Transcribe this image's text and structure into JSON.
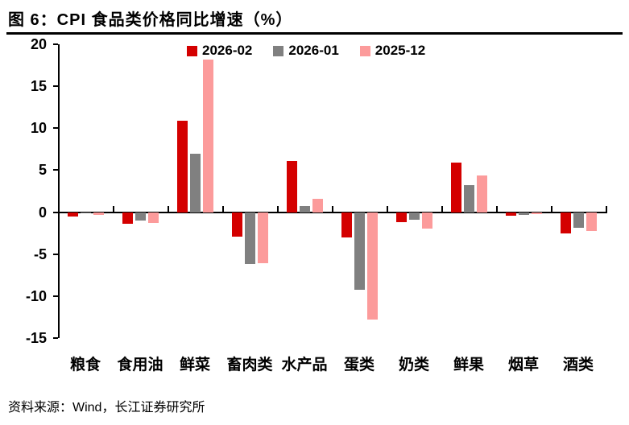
{
  "title": "图 6：CPI 食品类价格同比增速（%）",
  "source_note": "资料来源：Wind，长江证券研究所",
  "colors": {
    "red": "#d40000",
    "gray": "#808080",
    "pink": "#fc9b9b",
    "axis": "#000000"
  },
  "chart_data": {
    "type": "bar",
    "title": "图 6：CPI 食品类价格同比增速（%）",
    "xlabel": "",
    "ylabel": "",
    "ylim": [
      -15,
      20
    ],
    "yticks": [
      20,
      15,
      10,
      5,
      0,
      -5,
      -10,
      -15
    ],
    "grid": false,
    "legend_position": "top",
    "categories": [
      "粮食",
      "食用油",
      "鲜菜",
      "畜肉类",
      "水产品",
      "蛋类",
      "奶类",
      "鲜果",
      "烟草",
      "酒类"
    ],
    "series": [
      {
        "name": "2026-02",
        "color_key": "red",
        "values": [
          -0.5,
          -1.4,
          10.9,
          -2.9,
          6.1,
          -3.0,
          -1.2,
          5.9,
          -0.4,
          -2.5
        ]
      },
      {
        "name": "2026-01",
        "color_key": "gray",
        "values": [
          -0.1,
          -1.0,
          7.0,
          -6.2,
          0.7,
          -9.2,
          -0.9,
          3.2,
          -0.3,
          -1.9
        ]
      },
      {
        "name": "2025-12",
        "color_key": "pink",
        "values": [
          -0.3,
          -1.3,
          18.2,
          -6.1,
          1.6,
          -12.8,
          -2.0,
          4.4,
          -0.2,
          -2.2
        ]
      }
    ]
  }
}
